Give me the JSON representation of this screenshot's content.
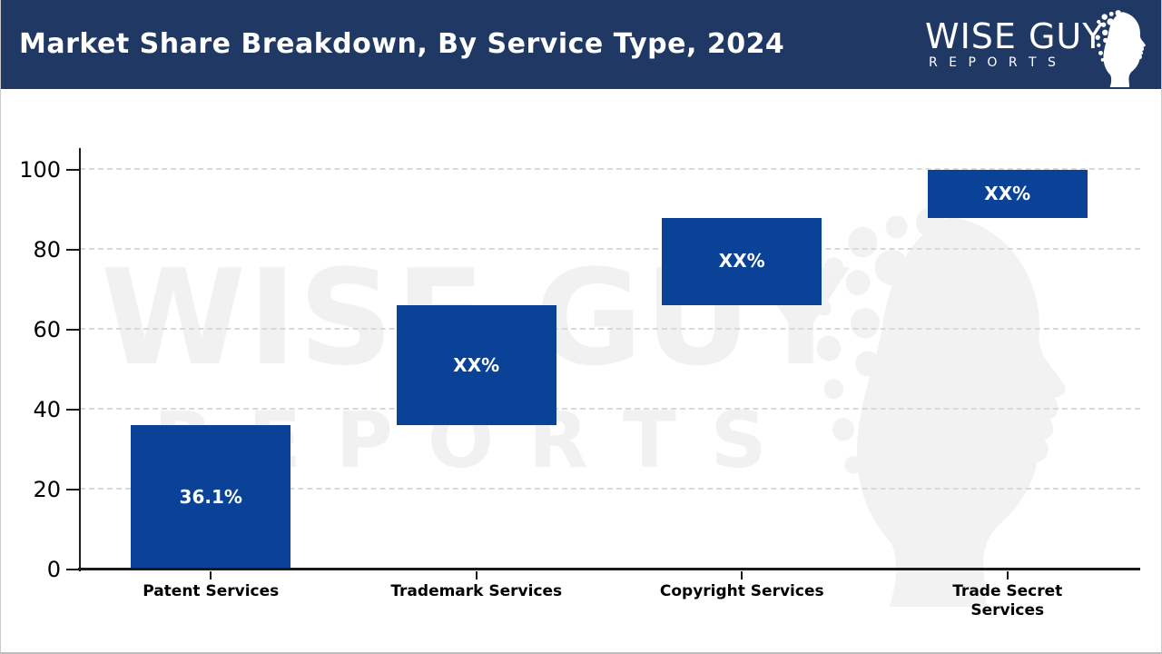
{
  "header": {
    "title": "Market Share Breakdown, By Service Type, 2024",
    "background_color": "#203864",
    "logo": {
      "line1": "WISE GUY",
      "line2": "R E P O R T S",
      "icon": "dotted-head-profile-icon"
    }
  },
  "watermark": {
    "line1": "WISE GUY",
    "line2": "R E P O R T S",
    "face_icon": "dotted-head-profile-watermark",
    "color": "#f1f1f1"
  },
  "chart_data": {
    "type": "bar",
    "variant": "floating-segment-waterfall",
    "title": "Market Share Breakdown, By Service Type, 2024",
    "categories": [
      "Patent Services",
      "Trademark Services",
      "Copyright Services",
      "Trade Secret Services"
    ],
    "xtick_label_lines": [
      [
        "Patent Services"
      ],
      [
        "Trademark Services"
      ],
      [
        "Copyright Services"
      ],
      [
        "Trade Secret",
        "Services"
      ]
    ],
    "series": [
      {
        "name": "Market share (%)",
        "segments": [
          {
            "category": "Patent Services",
            "start": 0,
            "end": 36.1,
            "label": "36.1%"
          },
          {
            "category": "Trademark Services",
            "start": 36.1,
            "end": 66.2,
            "label": "XX%"
          },
          {
            "category": "Copyright Services",
            "start": 66.2,
            "end": 88.0,
            "label": "XX%"
          },
          {
            "category": "Trade Secret Services",
            "start": 88.0,
            "end": 100.0,
            "label": "XX%"
          }
        ]
      }
    ],
    "ylim": [
      0,
      100
    ],
    "yticks": [
      0,
      20,
      40,
      60,
      80,
      100
    ],
    "grid": "horizontal-dashed",
    "grid_color": "#d9d9d9",
    "axis_color": "#1a1a1a",
    "bar_color": "#0a4298",
    "bar_label_color": "#ffffff",
    "legend": "none"
  }
}
